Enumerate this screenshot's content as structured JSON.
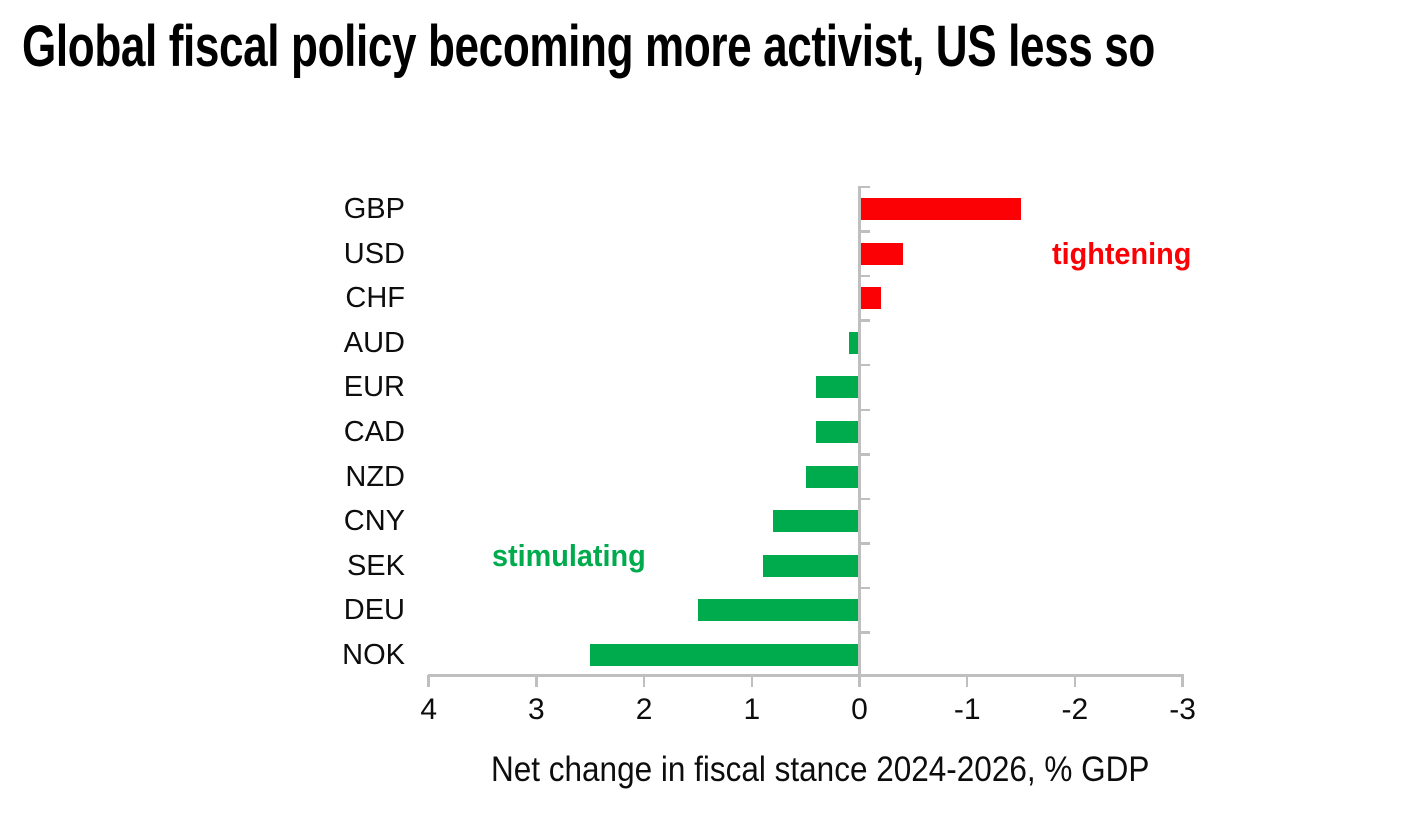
{
  "title": "Global fiscal policy becoming more activist, US less so",
  "chart_data": {
    "type": "bar",
    "orientation": "horizontal",
    "title": "Global fiscal policy becoming more activist, US less so",
    "categories": [
      "GBP",
      "USD",
      "CHF",
      "AUD",
      "EUR",
      "CAD",
      "NZD",
      "CNY",
      "SEK",
      "DEU",
      "NOK"
    ],
    "values": [
      -1.5,
      -0.4,
      -0.2,
      0.1,
      0.4,
      0.4,
      0.5,
      0.8,
      0.9,
      1.5,
      2.5
    ],
    "xlabel": "Net change in fiscal stance 2024-2026, % GDP",
    "xticks": [
      4,
      3,
      2,
      1,
      0,
      -1,
      -2,
      -3
    ],
    "xlim": [
      4,
      -3
    ],
    "x_axis_reversed": true,
    "grid": false,
    "legend": false,
    "annotations": [
      {
        "text": "tightening",
        "color": "#FB0005"
      },
      {
        "text": "stimulating",
        "color": "#00AB4E"
      }
    ],
    "colors": {
      "positive_bar": "#00AB4E",
      "negative_bar": "#FB0005",
      "axis": "#BFBFBF",
      "text": "#0D0D0D"
    }
  }
}
